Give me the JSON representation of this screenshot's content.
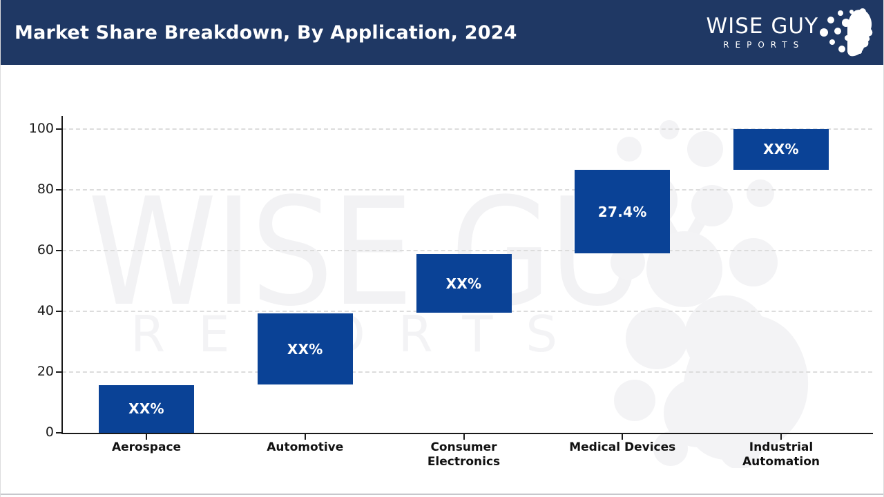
{
  "header": {
    "title": "Market Share Breakdown, By Application, 2024",
    "brand": {
      "name": "WISE GUY",
      "sub": "REPORTS"
    },
    "bg_color": "#1f3864"
  },
  "watermark": {
    "line1": "WISE GUY",
    "line2": "REPORTS"
  },
  "chart_data": {
    "type": "bar",
    "subtype": "floating-waterfall",
    "title": "Market Share Breakdown, By Application, 2024",
    "categories": [
      "Aerospace",
      "Automotive",
      "Consumer Electronics",
      "Medical Devices",
      "Industrial Automation"
    ],
    "bars": [
      {
        "category": "Aerospace",
        "start": 0,
        "end": 15.7,
        "value": 15.7,
        "label": "XX%"
      },
      {
        "category": "Automotive",
        "start": 15.9,
        "end": 39.3,
        "value": 23.4,
        "label": "XX%"
      },
      {
        "category": "Consumer Electronics",
        "start": 39.5,
        "end": 58.9,
        "value": 19.4,
        "label": "XX%"
      },
      {
        "category": "Medical Devices",
        "start": 59.1,
        "end": 86.5,
        "value": 27.4,
        "label": "27.4%"
      },
      {
        "category": "Industrial Automation",
        "start": 86.6,
        "end": 100,
        "value": 13.4,
        "label": "XX%"
      }
    ],
    "xlabel": "",
    "ylabel": "",
    "ylim": [
      0,
      105
    ],
    "yticks": [
      0,
      20,
      40,
      60,
      80,
      100
    ],
    "grid": "horizontal-dashed",
    "legend": "none",
    "bar_color": "#0a4296",
    "bar_label_color": "#ffffff",
    "axis_color": "#1a1a1a",
    "gridline_color": "#dcdcdc"
  }
}
